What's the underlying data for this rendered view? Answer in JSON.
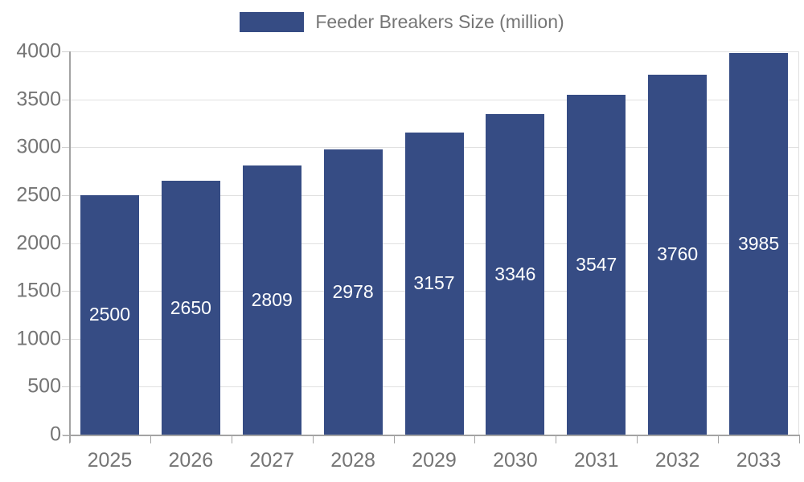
{
  "legend": {
    "label": "Feeder Breakers Size (million)"
  },
  "colors": {
    "bar": "#364C84",
    "grid": "#e0e0e0",
    "axis": "#a3a3a3",
    "tick_text": "#757575",
    "value_label": "#ffffff"
  },
  "chart_data": {
    "type": "bar",
    "title": "Feeder Breakers Size (million)",
    "categories": [
      "2025",
      "2026",
      "2027",
      "2028",
      "2029",
      "2030",
      "2031",
      "2032",
      "2033"
    ],
    "values": [
      2500,
      2650,
      2809,
      2978,
      3157,
      3346,
      3547,
      3760,
      3985
    ],
    "xlabel": "",
    "ylabel": "",
    "ylim": [
      0,
      4000
    ],
    "ytick_step": 500,
    "ytick_labels": [
      "0",
      "500",
      "1000",
      "1500",
      "2000",
      "2500",
      "3000",
      "3500",
      "4000"
    ],
    "grid": true,
    "legend_position": "top",
    "value_labels": "inside-center"
  }
}
